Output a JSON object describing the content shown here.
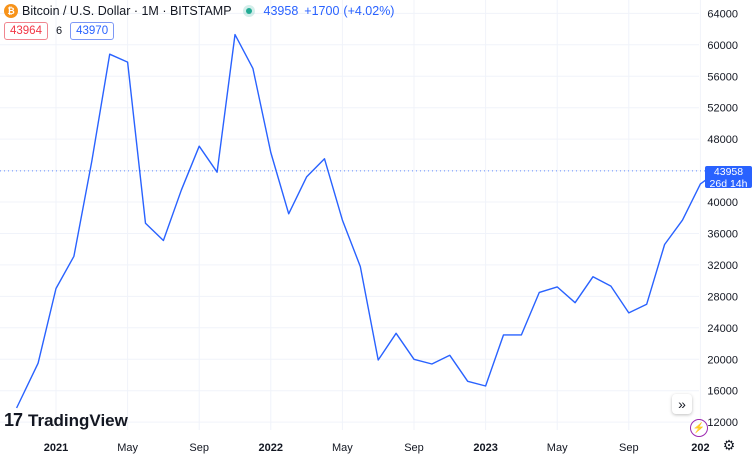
{
  "header": {
    "btc_icon_glyph": "₿",
    "symbol": "Bitcoin / U.S. Dollar · 1M · BITSTAMP",
    "price": "43958",
    "change": "+1700",
    "change_pct": "(+4.02%)"
  },
  "pricebox": {
    "bid": "43964",
    "spread": "6",
    "ask": "43970"
  },
  "last_price_label": {
    "price": "43958",
    "countdown": "26d 14h"
  },
  "branding": {
    "mark": "17",
    "name": "TradingView"
  },
  "buttons": {
    "goto_realtime": "»",
    "bolt": "⚡",
    "settings": "⚙"
  },
  "colors": {
    "line": "#2962ff",
    "accent": "#2962ff",
    "bid": "#f23645",
    "live": "#22ab94"
  },
  "chart_data": {
    "type": "line",
    "grid": true,
    "y_axis_position": "right",
    "ylim": [
      11000,
      65700
    ],
    "y_ticks": [
      12000,
      16000,
      20000,
      24000,
      28000,
      32000,
      36000,
      40000,
      44000,
      48000,
      52000,
      56000,
      60000,
      64000
    ],
    "x_tick_labels": [
      {
        "label": "2021",
        "month_index": 0
      },
      {
        "label": "May",
        "month_index": 4
      },
      {
        "label": "Sep",
        "month_index": 8
      },
      {
        "label": "2022",
        "month_index": 12
      },
      {
        "label": "May",
        "month_index": 16
      },
      {
        "label": "Sep",
        "month_index": 20
      },
      {
        "label": "2023",
        "month_index": 24
      },
      {
        "label": "May",
        "month_index": 28
      },
      {
        "label": "Sep",
        "month_index": 32
      },
      {
        "label": "202",
        "month_index": 36
      }
    ],
    "series": [
      {
        "values": [
          [
            -2.2,
            13800
          ],
          [
            -1,
            19500
          ],
          [
            0,
            29000
          ],
          [
            1,
            33100
          ],
          [
            2,
            45200
          ],
          [
            3,
            58800
          ],
          [
            4,
            57800
          ],
          [
            5,
            37300
          ],
          [
            6,
            35100
          ],
          [
            7,
            41500
          ],
          [
            8,
            47100
          ],
          [
            9,
            43800
          ],
          [
            10,
            61300
          ],
          [
            11,
            57000
          ],
          [
            12,
            46300
          ],
          [
            13,
            38500
          ],
          [
            14,
            43200
          ],
          [
            15,
            45500
          ],
          [
            16,
            37700
          ],
          [
            17,
            31800
          ],
          [
            18,
            19900
          ],
          [
            19,
            23300
          ],
          [
            20,
            20000
          ],
          [
            21,
            19400
          ],
          [
            22,
            20500
          ],
          [
            23,
            17200
          ],
          [
            24,
            16600
          ],
          [
            25,
            23100
          ],
          [
            26,
            23100
          ],
          [
            27,
            28500
          ],
          [
            28,
            29200
          ],
          [
            29,
            27200
          ],
          [
            30,
            30500
          ],
          [
            31,
            29300
          ],
          [
            32,
            25900
          ],
          [
            33,
            27000
          ],
          [
            34,
            34600
          ],
          [
            35,
            37700
          ],
          [
            36,
            42300
          ],
          [
            37,
            43958
          ]
        ]
      }
    ],
    "last_price": 43958
  }
}
